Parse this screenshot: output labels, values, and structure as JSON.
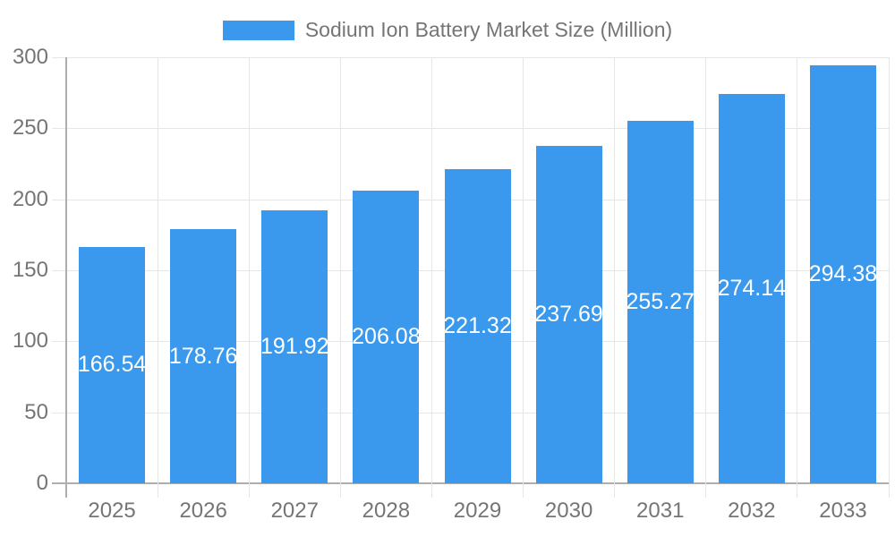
{
  "chart_data": {
    "type": "bar",
    "title": "Sodium Ion Battery Market Size (Million)",
    "categories": [
      "2025",
      "2026",
      "2027",
      "2028",
      "2029",
      "2030",
      "2031",
      "2032",
      "2033"
    ],
    "values": [
      166.54,
      178.76,
      191.92,
      206.08,
      221.32,
      237.69,
      255.27,
      274.14,
      294.38
    ],
    "xlabel": "",
    "ylabel": "",
    "ylim": [
      0,
      300
    ],
    "yticks": [
      0,
      50,
      100,
      150,
      200,
      250,
      300
    ],
    "grid": true,
    "legend_position": "top-center",
    "value_label_position": "inside-center",
    "colors": {
      "bar": "#3a99ec",
      "value_label_text": "#ffffff",
      "axis_text": "#757575",
      "axis_line": "#aeaeae",
      "gridline": "#e6e6e6",
      "background": "#ffffff"
    }
  }
}
